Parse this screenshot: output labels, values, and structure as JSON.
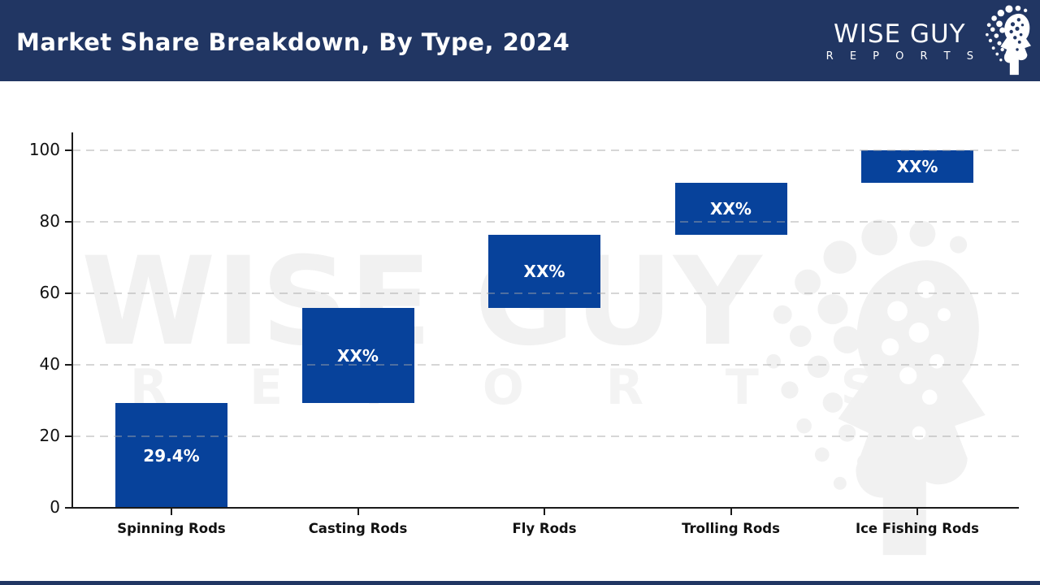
{
  "header": {
    "title": "Market Share Breakdown, By Type, 2024",
    "logo": {
      "wordmark": "WISE GUY",
      "subtitle": "R E P O R T S"
    }
  },
  "watermark": {
    "wordmark": "WISE GUY",
    "subtitle": "R E P O R T S"
  },
  "chart_data": {
    "type": "bar",
    "subtype": "waterfall",
    "title": "Market Share Breakdown, By Type, 2024",
    "categories": [
      "Spinning Rods",
      "Casting Rods",
      "Fly Rods",
      "Trolling Rods",
      "Ice Fishing Rods"
    ],
    "series": [
      {
        "name": "Market Share",
        "segments": [
          {
            "category": "Spinning Rods",
            "start": 0,
            "end": 29.4,
            "label": "29.4%"
          },
          {
            "category": "Casting Rods",
            "start": 29.4,
            "end": 56.0,
            "label": "XX%"
          },
          {
            "category": "Fly Rods",
            "start": 56.0,
            "end": 76.4,
            "label": "XX%"
          },
          {
            "category": "Trolling Rods",
            "start": 76.4,
            "end": 91.0,
            "label": "XX%"
          },
          {
            "category": "Ice Fishing Rods",
            "start": 91.0,
            "end": 100.0,
            "label": "XX%"
          }
        ]
      }
    ],
    "xlabel": "",
    "ylabel": "",
    "ylim": [
      0,
      105
    ],
    "yticks": [
      0,
      20,
      40,
      60,
      80,
      100
    ],
    "grid": "horizontal-dashed",
    "legend": "none",
    "colors": {
      "bar": "#07429b",
      "bar_label": "#ffffff",
      "header_bg": "#213663",
      "grid": "#dcdcdc",
      "axis": "#1a1a1a",
      "watermark": "#f1f1f1"
    }
  }
}
